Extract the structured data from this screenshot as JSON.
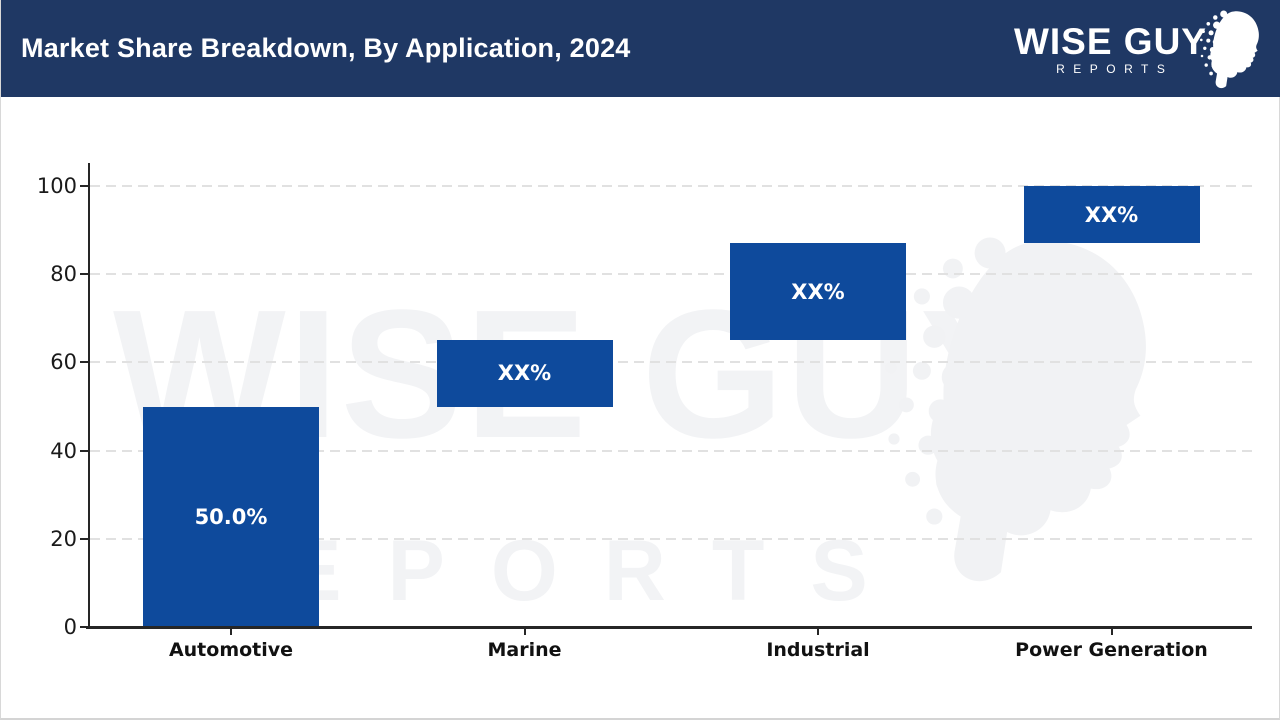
{
  "header": {
    "title": "Market Share Breakdown, By Application, 2024",
    "background_color": "#1F3864",
    "logo": {
      "name": "WISE GUY",
      "subtitle": "REPORTS",
      "head_icon": "dotted-face-profile-icon"
    }
  },
  "watermark": {
    "line1": "WISE GUY",
    "line2": "REPORTS",
    "head_icon": "dotted-face-profile-watermark-icon"
  },
  "chart_data": {
    "type": "bar",
    "subtype": "waterfall-segments",
    "title": "Market Share Breakdown, By Application, 2024",
    "categories": [
      "Automotive",
      "Marine",
      "Industrial",
      "Power Generation"
    ],
    "series": [
      {
        "name": "Market share (%)",
        "segments": [
          {
            "category": "Automotive",
            "start": 0,
            "end": 50,
            "label": "50.0%"
          },
          {
            "category": "Marine",
            "start": 50,
            "end": 65,
            "label": "XX%"
          },
          {
            "category": "Industrial",
            "start": 65,
            "end": 87,
            "label": "XX%"
          },
          {
            "category": "Power Generation",
            "start": 87,
            "end": 100,
            "label": "XX%"
          }
        ]
      }
    ],
    "xlabel": "",
    "ylabel": "",
    "yticks": [
      0,
      20,
      40,
      60,
      80,
      100
    ],
    "ylim": [
      0,
      105
    ],
    "grid": "horizontal-dashed",
    "legend": "none",
    "bar_color": "#0E4A9C",
    "bar_label_color": "#FFFFFF"
  }
}
